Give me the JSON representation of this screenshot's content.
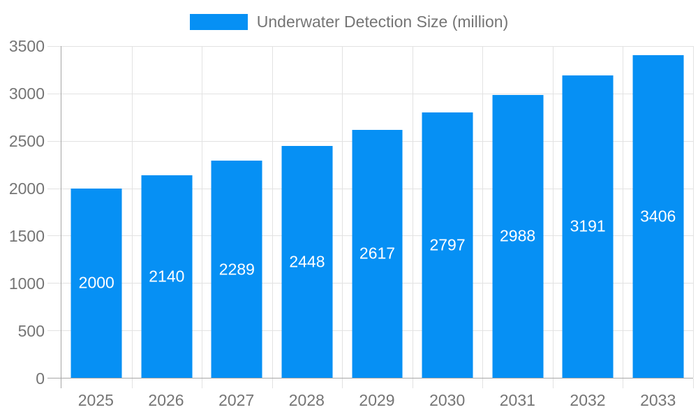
{
  "colors": {
    "background": "#ffffff",
    "bar": "#0690f4",
    "grid": "#e2e2e2",
    "axis": "#a6a6a6",
    "text": "#757575",
    "bar_label": "#ffffff"
  },
  "chart_data": {
    "type": "bar",
    "title": "",
    "legend": {
      "label": "Underwater Detection Size (million)",
      "position": "top-center"
    },
    "categories": [
      "2025",
      "2026",
      "2027",
      "2028",
      "2029",
      "2030",
      "2031",
      "2032",
      "2033"
    ],
    "series": [
      {
        "name": "Underwater Detection Size (million)",
        "values": [
          2000,
          2140,
          2289,
          2448,
          2617,
          2797,
          2988,
          3191,
          3406
        ]
      }
    ],
    "xlabel": "",
    "ylabel": "",
    "ylim": [
      0,
      3500
    ],
    "yticks": [
      0,
      500,
      1000,
      1500,
      2000,
      2500,
      3000,
      3500
    ],
    "grid": true,
    "value_labels": "inside-middle"
  }
}
